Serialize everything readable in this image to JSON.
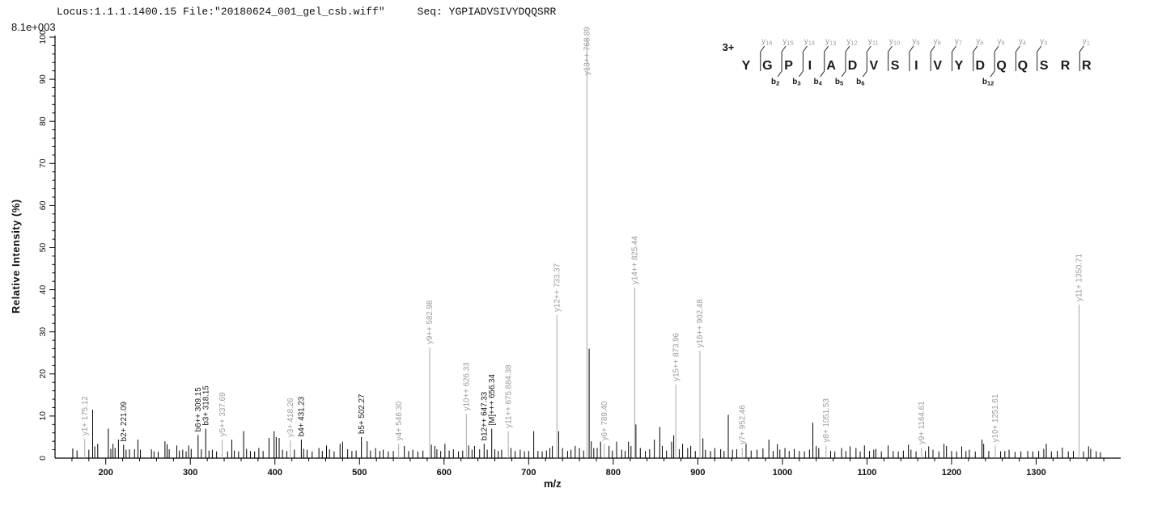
{
  "header": {
    "locus_file": "Locus:1.1.1.1400.15 File:\"20180624_001_gel_csb.wiff\"",
    "seq_text": "Seq: YGPIADVSIVYDQQSRR"
  },
  "colors": {
    "peak": "#000000",
    "annotated_peak": "#a9a9a9",
    "y_label": "#9b9b9b",
    "b_label": "#1a1a1a",
    "axis": "#000000"
  },
  "peptide": {
    "charge_label": "3+",
    "residues": [
      "Y",
      "G",
      "P",
      "I",
      "A",
      "D",
      "V",
      "S",
      "I",
      "V",
      "Y",
      "D",
      "Q",
      "Q",
      "S",
      "R",
      "R"
    ],
    "gaps": [
      {
        "after": 1,
        "y": "y16"
      },
      {
        "after": 2,
        "y": "y15",
        "b": "b2"
      },
      {
        "after": 3,
        "y": "y14",
        "b": "b3"
      },
      {
        "after": 4,
        "y": "y13",
        "b": "b4"
      },
      {
        "after": 5,
        "y": "y12",
        "b": "b5"
      },
      {
        "after": 6,
        "y": "y11",
        "b": "b6"
      },
      {
        "after": 7,
        "y": "y10"
      },
      {
        "after": 8,
        "y": "y9"
      },
      {
        "after": 9,
        "y": "y8"
      },
      {
        "after": 10,
        "y": "y7"
      },
      {
        "after": 11,
        "y": "y6"
      },
      {
        "after": 12,
        "y": "y5",
        "b": "b12"
      },
      {
        "after": 13,
        "y": "y4"
      },
      {
        "after": 14,
        "y": "y3"
      },
      {
        "after": 16,
        "y": "y1"
      }
    ]
  },
  "chart_data": {
    "type": "bar",
    "title": "MS/MS fragment spectrum",
    "xlabel": "m/z",
    "ylabel": "Relative Intensity (%)",
    "scale_note": "8.1e+003",
    "x_axis": {
      "min": 140,
      "max": 1400,
      "major_step": 100,
      "minor_step": 20,
      "tick_labels": [
        200,
        300,
        400,
        500,
        600,
        700,
        800,
        900,
        1000,
        1100,
        1200,
        1300
      ]
    },
    "y_axis": {
      "min": 0,
      "max": 100,
      "major_step": 10,
      "minor_step": 2,
      "tick_labels": [
        0,
        10,
        20,
        30,
        40,
        50,
        60,
        70,
        80,
        90,
        100
      ]
    },
    "peaks": [
      [
        161,
        2.3
      ],
      [
        166,
        1.8
      ],
      [
        175.12,
        4.6,
        "y1+ 175.12",
        "y"
      ],
      [
        180,
        2
      ],
      [
        184.5,
        11.5
      ],
      [
        187,
        2.8
      ],
      [
        190.5,
        3.4
      ],
      [
        203,
        7
      ],
      [
        206,
        2.2
      ],
      [
        208.5,
        3.4
      ],
      [
        211,
        2.4
      ],
      [
        215,
        4.4
      ],
      [
        221.09,
        3.2,
        "b2+ 221.09",
        "b"
      ],
      [
        224,
        2
      ],
      [
        228,
        2.1
      ],
      [
        234,
        2.1
      ],
      [
        238,
        4.4
      ],
      [
        241,
        2
      ],
      [
        254,
        2.1
      ],
      [
        257,
        1.6
      ],
      [
        262,
        1.5
      ],
      [
        270,
        4
      ],
      [
        272.5,
        3.3
      ],
      [
        275,
        2.1
      ],
      [
        284,
        3
      ],
      [
        287,
        1.8
      ],
      [
        291,
        2
      ],
      [
        295,
        1.6
      ],
      [
        298,
        3
      ],
      [
        301,
        2.2
      ],
      [
        309.15,
        5.5,
        "b6++ 309.15",
        "b"
      ],
      [
        313,
        2.1
      ],
      [
        318.15,
        7,
        "b3+ 318.15",
        "b"
      ],
      [
        322,
        1.8
      ],
      [
        326,
        2
      ],
      [
        331,
        1.6
      ],
      [
        337.69,
        4.4,
        "y5++ 337.69",
        "y"
      ],
      [
        344,
        1.6
      ],
      [
        349,
        4.4
      ],
      [
        352,
        1.8
      ],
      [
        357,
        1.6
      ],
      [
        363,
        6.4
      ],
      [
        366.5,
        2.2
      ],
      [
        371,
        1.7
      ],
      [
        376,
        1.6
      ],
      [
        381,
        2.4
      ],
      [
        386,
        1.7
      ],
      [
        393,
        4.8
      ],
      [
        399,
        6.4
      ],
      [
        401.5,
        5
      ],
      [
        405,
        4.8
      ],
      [
        409,
        2
      ],
      [
        414,
        1.7
      ],
      [
        418.26,
        4.2,
        "y3+ 418.26",
        "y"
      ],
      [
        423,
        2
      ],
      [
        431.23,
        4.4,
        "b4+ 431.23",
        "b"
      ],
      [
        434,
        2.2
      ],
      [
        438,
        2
      ],
      [
        444,
        1.6
      ],
      [
        452,
        2.4
      ],
      [
        456,
        1.7
      ],
      [
        461,
        3
      ],
      [
        464.5,
        2.1
      ],
      [
        470,
        1.6
      ],
      [
        477,
        3.4
      ],
      [
        480,
        3.9
      ],
      [
        486,
        2.1
      ],
      [
        491,
        1.7
      ],
      [
        496,
        1.8
      ],
      [
        502.27,
        5,
        "b5+ 502.27",
        "b"
      ],
      [
        509,
        4
      ],
      [
        513,
        1.8
      ],
      [
        519,
        2.4
      ],
      [
        524,
        1.7
      ],
      [
        528,
        2
      ],
      [
        534,
        1.6
      ],
      [
        540,
        1.7
      ],
      [
        546.3,
        3.4,
        "y4+ 546.30",
        "y"
      ],
      [
        553,
        2.9
      ],
      [
        558,
        1.7
      ],
      [
        563,
        2
      ],
      [
        569,
        1.6
      ],
      [
        575,
        1.8
      ],
      [
        582.98,
        26.3,
        "y9++ 582.98",
        "y"
      ],
      [
        585,
        3.2
      ],
      [
        589,
        2.9
      ],
      [
        591.5,
        2.1
      ],
      [
        596,
        1.7
      ],
      [
        601,
        3.4
      ],
      [
        606,
        1.8
      ],
      [
        611,
        2.1
      ],
      [
        617,
        1.6
      ],
      [
        622,
        1.8
      ],
      [
        626.33,
        10.5,
        "y10++ 626.33",
        "y"
      ],
      [
        629,
        3
      ],
      [
        633,
        2
      ],
      [
        636,
        2.9
      ],
      [
        642,
        2.1
      ],
      [
        647.33,
        3.4,
        "b12++ 647.33",
        "b"
      ],
      [
        651,
        2
      ],
      [
        656.34,
        7,
        "[M]+++ 656.34",
        "M"
      ],
      [
        660,
        2.1
      ],
      [
        664,
        1.7
      ],
      [
        668,
        2
      ],
      [
        675.88,
        6.4,
        "y11++ 675.884.38",
        "y"
      ],
      [
        679,
        2.4
      ],
      [
        684,
        1.7
      ],
      [
        690,
        2
      ],
      [
        695,
        1.6
      ],
      [
        700,
        1.7
      ],
      [
        706,
        6.4
      ],
      [
        711,
        1.7
      ],
      [
        716,
        1.6
      ],
      [
        721,
        1.8
      ],
      [
        725,
        2.4
      ],
      [
        728,
        2.9
      ],
      [
        733.37,
        34,
        "y12++ 733.37",
        "y"
      ],
      [
        735.5,
        6.4
      ],
      [
        740,
        2.4
      ],
      [
        746,
        1.7
      ],
      [
        750,
        2
      ],
      [
        755,
        2.9
      ],
      [
        760,
        2.4
      ],
      [
        765,
        1.8
      ],
      [
        768.89,
        100,
        "y13++ 768.89",
        "y"
      ],
      [
        771.5,
        26
      ],
      [
        774,
        4
      ],
      [
        777,
        2.4
      ],
      [
        781,
        2.4
      ],
      [
        785,
        3.9
      ],
      [
        789.4,
        3.4,
        "y6+ 789.40",
        "y"
      ],
      [
        795,
        2.9
      ],
      [
        799,
        1.8
      ],
      [
        804,
        3.9
      ],
      [
        810,
        2
      ],
      [
        814,
        1.7
      ],
      [
        818,
        3.9
      ],
      [
        821,
        2.9
      ],
      [
        825.44,
        40.5,
        "y14++ 825.44",
        "y"
      ],
      [
        826.8,
        8
      ],
      [
        832,
        2.4
      ],
      [
        838,
        1.7
      ],
      [
        843,
        2.1
      ],
      [
        848.6,
        4.4
      ],
      [
        855,
        7.4
      ],
      [
        858,
        2.9
      ],
      [
        863,
        1.8
      ],
      [
        869,
        3.9
      ],
      [
        871.5,
        5.4
      ],
      [
        873.96,
        17.5,
        "y15++ 873.96",
        "y"
      ],
      [
        878,
        2.1
      ],
      [
        882,
        3.4
      ],
      [
        888,
        2.4
      ],
      [
        891.6,
        2.9
      ],
      [
        897,
        1.7
      ],
      [
        902.48,
        25.5,
        "y16++ 902.48",
        "y"
      ],
      [
        906,
        4.7
      ],
      [
        909,
        2
      ],
      [
        915,
        1.7
      ],
      [
        920,
        2.4
      ],
      [
        927,
        2.1
      ],
      [
        931,
        1.7
      ],
      [
        936,
        10.3
      ],
      [
        941,
        2
      ],
      [
        946,
        2.1
      ],
      [
        952.46,
        2.5,
        "y7+ 952.46",
        "y"
      ],
      [
        957,
        3.4
      ],
      [
        963,
        1.8
      ],
      [
        970,
        2
      ],
      [
        977,
        2.3
      ],
      [
        984,
        4.4
      ],
      [
        989,
        1.7
      ],
      [
        994,
        3.3
      ],
      [
        997,
        2
      ],
      [
        1003,
        2.4
      ],
      [
        1008,
        1.7
      ],
      [
        1014,
        2.2
      ],
      [
        1020,
        1.7
      ],
      [
        1026,
        1.6
      ],
      [
        1032,
        2
      ],
      [
        1036,
        8.4
      ],
      [
        1040,
        2.9
      ],
      [
        1043,
        2.4
      ],
      [
        1051.53,
        3,
        "y8+ 1051.53",
        "y"
      ],
      [
        1057,
        1.7
      ],
      [
        1062,
        1.6
      ],
      [
        1070,
        2.4
      ],
      [
        1075,
        1.7
      ],
      [
        1080,
        2.8
      ],
      [
        1087,
        2.4
      ],
      [
        1092,
        1.6
      ],
      [
        1097,
        3
      ],
      [
        1103,
        1.7
      ],
      [
        1108,
        2
      ],
      [
        1110.5,
        2.2
      ],
      [
        1117,
        1.6
      ],
      [
        1125,
        3
      ],
      [
        1131,
        1.7
      ],
      [
        1137,
        1.6
      ],
      [
        1143,
        1.8
      ],
      [
        1149,
        3.2
      ],
      [
        1152,
        2
      ],
      [
        1158,
        1.6
      ],
      [
        1164.61,
        2.5,
        "y9+ 1164.61",
        "y"
      ],
      [
        1169,
        1.7
      ],
      [
        1173,
        2.8
      ],
      [
        1178,
        2
      ],
      [
        1185,
        1.6
      ],
      [
        1191,
        3.4
      ],
      [
        1194,
        2.9
      ],
      [
        1200,
        1.7
      ],
      [
        1206,
        1.6
      ],
      [
        1212,
        2.8
      ],
      [
        1217,
        1.7
      ],
      [
        1221,
        2
      ],
      [
        1228,
        1.6
      ],
      [
        1236,
        4.4
      ],
      [
        1238,
        3.4
      ],
      [
        1244,
        1.7
      ],
      [
        1251.61,
        3,
        "y10+ 1251.61",
        "y"
      ],
      [
        1258,
        1.6
      ],
      [
        1263,
        1.7
      ],
      [
        1268,
        2
      ],
      [
        1275,
        1.5
      ],
      [
        1282,
        1.6
      ],
      [
        1290,
        1.7
      ],
      [
        1296,
        1.6
      ],
      [
        1303,
        1.7
      ],
      [
        1309,
        2.2
      ],
      [
        1312,
        3.4
      ],
      [
        1318,
        1.6
      ],
      [
        1325,
        1.7
      ],
      [
        1331,
        2.5
      ],
      [
        1338,
        1.6
      ],
      [
        1344,
        1.7
      ],
      [
        1350.71,
        36.5,
        "y11+ 1350.71",
        "y"
      ],
      [
        1356,
        1.6
      ],
      [
        1362,
        2.8
      ],
      [
        1364.5,
        2.2
      ],
      [
        1371,
        1.6
      ],
      [
        1376,
        1.4
      ]
    ]
  }
}
